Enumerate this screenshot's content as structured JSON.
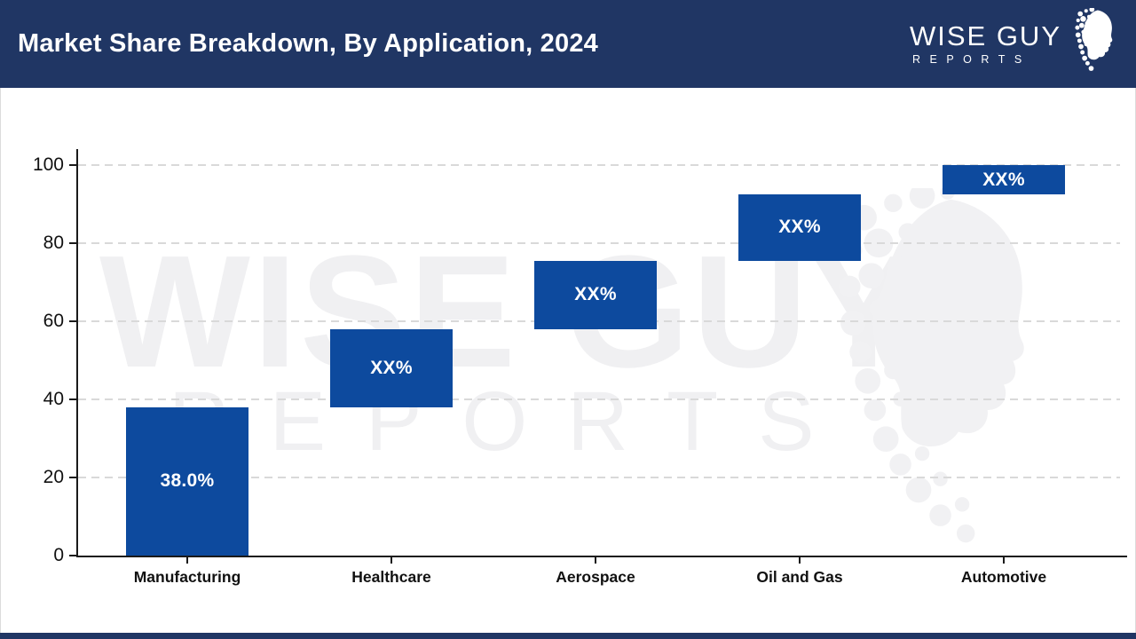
{
  "header": {
    "title": "Market Share Breakdown, By Application, 2024",
    "logo": {
      "line1": "WISE GUY",
      "line2": "REPORTS"
    }
  },
  "watermark": {
    "line1": "WISE GUY",
    "line2": "REPORTS"
  },
  "chart_data": {
    "type": "bar",
    "subtype": "waterfall",
    "title": "Market Share Breakdown, By Application, 2024",
    "xlabel": "",
    "ylabel": "",
    "categories": [
      "Manufacturing",
      "Healthcare",
      "Aerospace",
      "Oil and Gas",
      "Automotive"
    ],
    "segments": [
      {
        "category": "Manufacturing",
        "start": 0,
        "end": 38,
        "label": "38.0%"
      },
      {
        "category": "Healthcare",
        "start": 38,
        "end": 58,
        "label": "XX%"
      },
      {
        "category": "Aerospace",
        "start": 58,
        "end": 75.5,
        "label": "XX%"
      },
      {
        "category": "Oil and Gas",
        "start": 75.5,
        "end": 92.5,
        "label": "XX%"
      },
      {
        "category": "Automotive",
        "start": 92.5,
        "end": 100,
        "label": "XX%"
      }
    ],
    "yticks": [
      0,
      20,
      40,
      60,
      80,
      100
    ],
    "ylim": [
      0,
      100
    ],
    "grid": "horizontal dashed",
    "legend": "none",
    "bar_color": "#0d4a9e",
    "bar_label_color": "#ffffff"
  },
  "colors": {
    "header_bg": "#203664",
    "footer_bg": "#203664",
    "bar": "#0d4a9e",
    "watermark": "#f0f0f2",
    "gridline": "#d9d9d9",
    "axis": "#1a1a1a"
  }
}
